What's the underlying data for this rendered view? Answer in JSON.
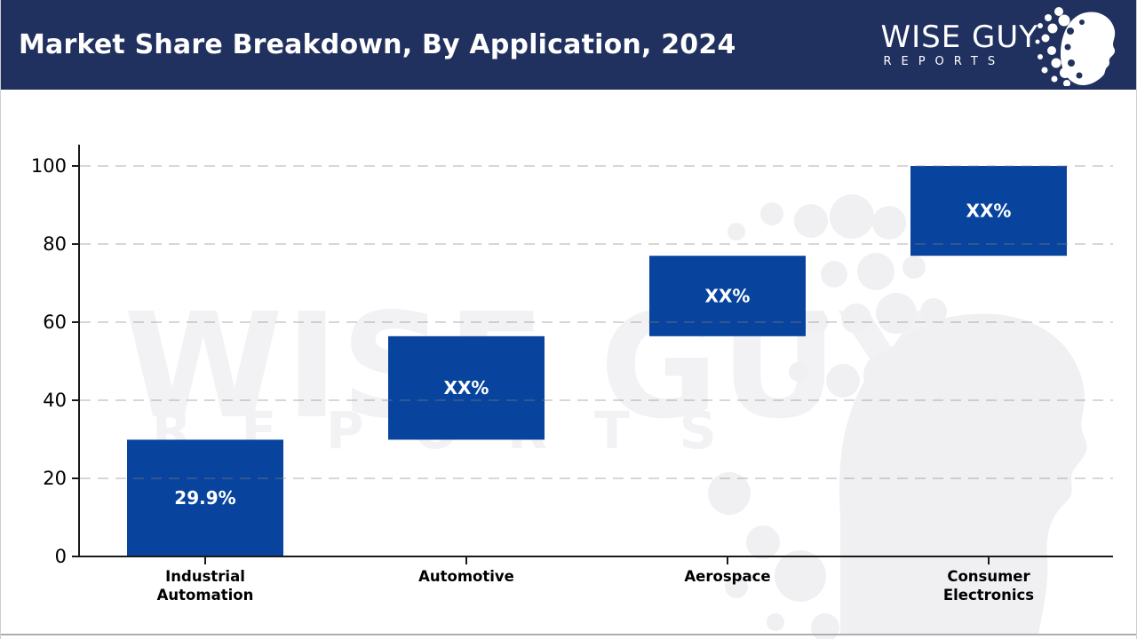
{
  "header": {
    "title": "Market Share Breakdown, By Application, 2024",
    "bg_color": "#21315f",
    "logo": {
      "line1": "WISE GUY",
      "line2": "REPORTS"
    }
  },
  "watermark": {
    "line1": "WISE GUY",
    "line2": "REPORTS"
  },
  "chart_data": {
    "type": "bar",
    "subtype": "waterfall-floating-bars",
    "title": "Market Share Breakdown, By Application, 2024",
    "xlabel": "",
    "ylabel": "",
    "ylim": [
      0,
      105
    ],
    "y_ticks": [
      0,
      20,
      40,
      60,
      80,
      100
    ],
    "grid": true,
    "legend": false,
    "bar_color": "#08449d",
    "grid_color": "#c9c9c9",
    "axis_color": "#1a1a1a",
    "categories": [
      "Industrial Automation",
      "Automotive",
      "Aerospace",
      "Consumer Electronics"
    ],
    "category_lines": [
      [
        "Industrial",
        "Automation"
      ],
      [
        "Automotive"
      ],
      [
        "Aerospace"
      ],
      [
        "Consumer",
        "Electronics"
      ]
    ],
    "segments": [
      {
        "category": "Industrial Automation",
        "start": 0,
        "end": 29.9,
        "label": "29.9%"
      },
      {
        "category": "Automotive",
        "start": 29.9,
        "end": 56.4,
        "label": "XX%"
      },
      {
        "category": "Aerospace",
        "start": 56.4,
        "end": 77.0,
        "label": "XX%"
      },
      {
        "category": "Consumer Electronics",
        "start": 77.0,
        "end": 100,
        "label": "XX%"
      }
    ]
  }
}
